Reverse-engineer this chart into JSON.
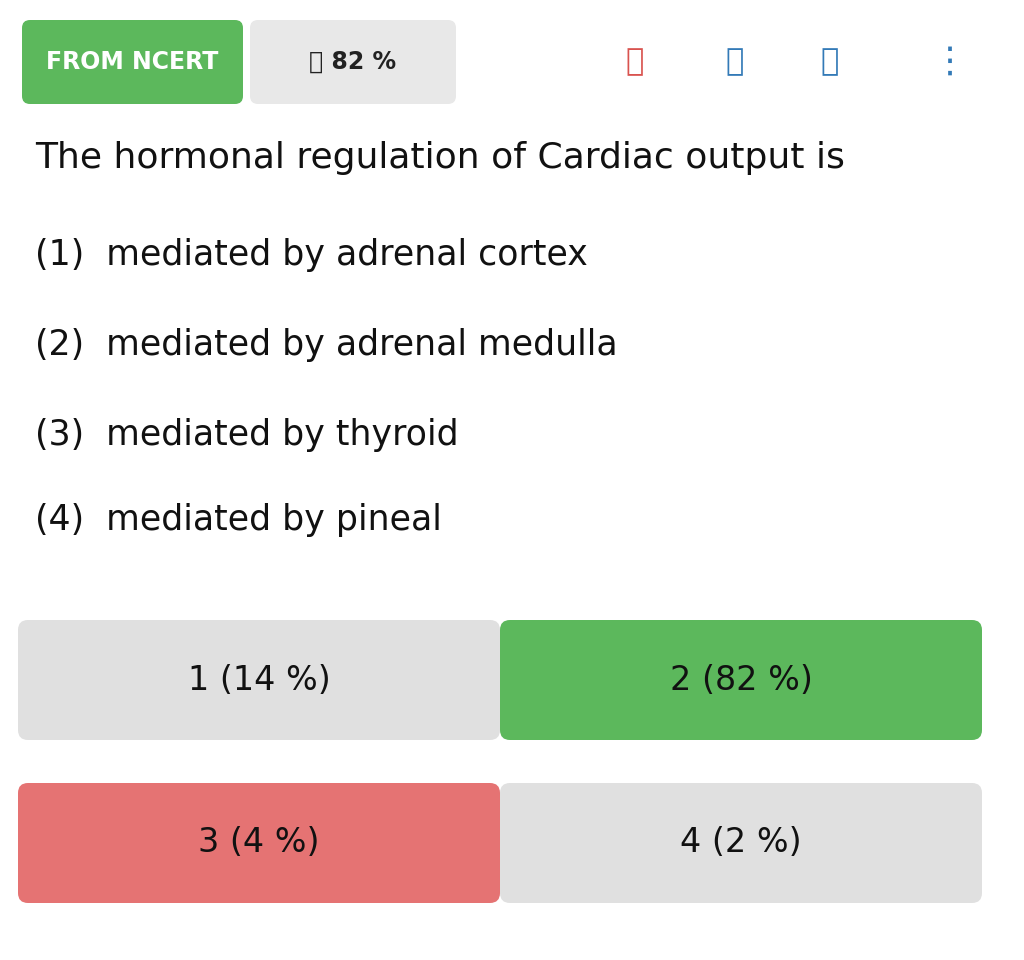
{
  "background_color": "#ffffff",
  "header": {
    "from_ncert_text": "FROM NCERT",
    "from_ncert_bg": "#5cb85c",
    "from_ncert_text_color": "#ffffff",
    "like_bg": "#e8e8e8",
    "like_text_color": "#222222"
  },
  "question": "The hormonal regulation of Cardiac output is",
  "options": [
    "(1)  mediated by adrenal cortex",
    "(2)  mediated by adrenal medulla",
    "(3)  mediated by thyroid",
    "(4)  mediated by pineal"
  ],
  "result_boxes": [
    {
      "label": "1 (14 %)",
      "color": "#e0e0e0",
      "text_color": "#111111"
    },
    {
      "label": "2 (82 %)",
      "color": "#5cb85c",
      "text_color": "#111111"
    },
    {
      "label": "3 (4 %)",
      "color": "#e57373",
      "text_color": "#111111"
    },
    {
      "label": "4 (2 %)",
      "color": "#e0e0e0",
      "text_color": "#111111"
    }
  ],
  "question_fontsize": 26,
  "option_fontsize": 25,
  "result_fontsize": 24,
  "header_fontsize": 17
}
